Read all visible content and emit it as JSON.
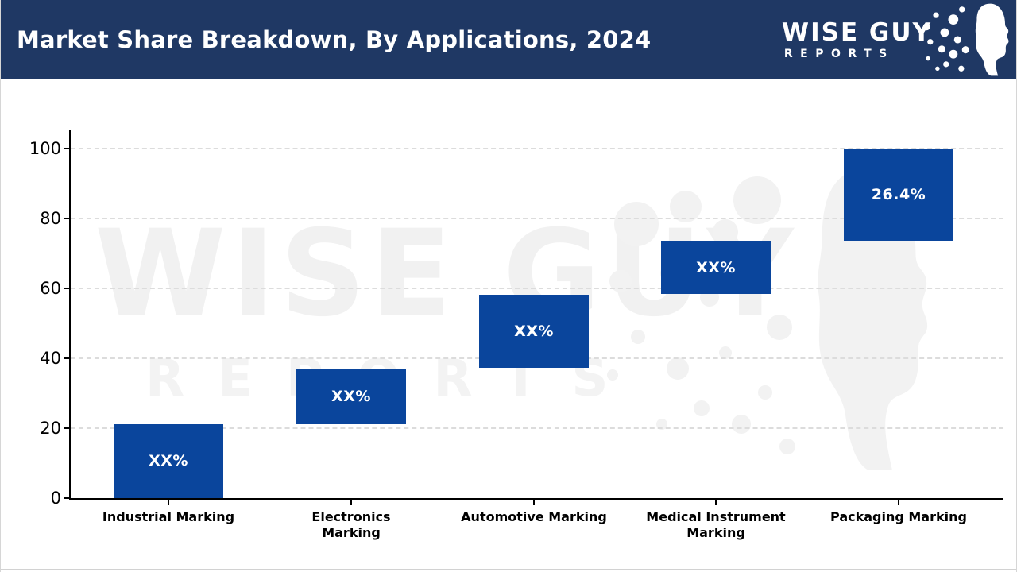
{
  "header": {
    "title": "Market Share Breakdown, By Applications, 2024",
    "bg_color": "#1f3864",
    "logo": {
      "line1": "WISE GUY",
      "line2": "REPORTS"
    }
  },
  "watermark": {
    "line1": "WISE GUY",
    "line2": "REPORTS"
  },
  "chart_data": {
    "type": "bar",
    "subtype": "waterfall-floating-bars",
    "title": "Market Share Breakdown, By Applications, 2024",
    "categories": [
      "Industrial Marking",
      "Electronics Marking",
      "Automotive Marking",
      "Medical Instrument Marking",
      "Packaging Marking"
    ],
    "category_display": [
      "Industrial Marking",
      "Electronics\nMarking",
      "Automotive Marking",
      "Medical Instrument\nMarking",
      "Packaging Marking"
    ],
    "bars": [
      {
        "label": "XX%",
        "base": 0,
        "top": 21.2
      },
      {
        "label": "XX%",
        "base": 21.2,
        "top": 37.1
      },
      {
        "label": "XX%",
        "base": 37.3,
        "top": 58.2
      },
      {
        "label": "XX%",
        "base": 58.4,
        "top": 73.6
      },
      {
        "label": "26.4%",
        "base": 73.6,
        "top": 100
      }
    ],
    "values": [
      21.2,
      15.9,
      20.9,
      15.2,
      26.4
    ],
    "data_labels": [
      "XX%",
      "XX%",
      "XX%",
      "XX%",
      "26.4%"
    ],
    "bar_color": "#0a459c",
    "label_color": "#ffffff",
    "ylim": [
      0,
      100
    ],
    "yticks": [
      0,
      20,
      40,
      60,
      80,
      100
    ],
    "xlabel": "",
    "ylabel": "",
    "grid": "horizontal-dashed",
    "gridline_color": "#dcdcdc",
    "legend": "none"
  }
}
